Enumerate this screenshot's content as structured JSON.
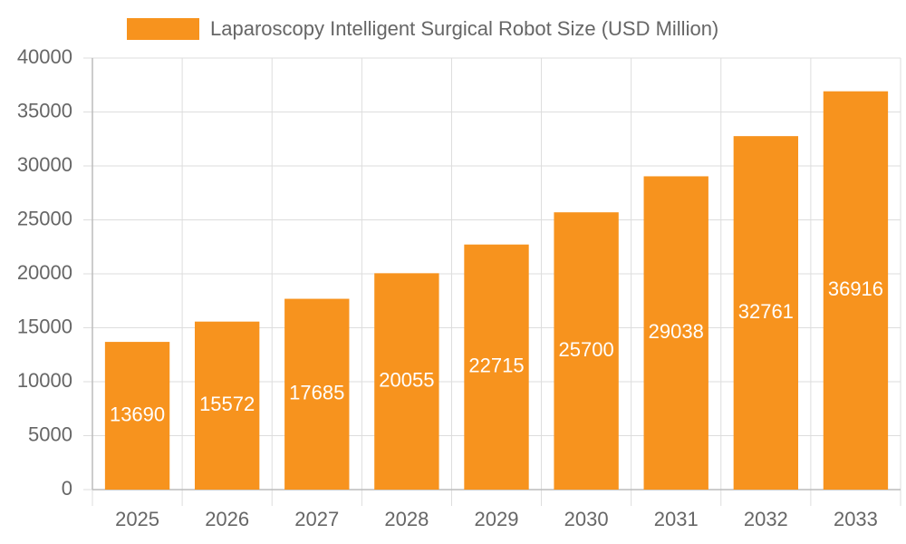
{
  "chart_data": {
    "type": "bar",
    "categories": [
      "2025",
      "2026",
      "2027",
      "2028",
      "2029",
      "2030",
      "2031",
      "2032",
      "2033"
    ],
    "series": [
      {
        "name": "Laparoscopy Intelligent Surgical Robot Size (USD Million)",
        "color": "#f7931e",
        "values": [
          13690,
          15572,
          17685,
          20055,
          22715,
          25700,
          29038,
          32761,
          36916
        ]
      }
    ],
    "ylim": [
      0,
      40000
    ],
    "yticks": [
      0,
      5000,
      10000,
      15000,
      20000,
      25000,
      30000,
      35000,
      40000
    ],
    "grid": true,
    "legend": "top"
  }
}
